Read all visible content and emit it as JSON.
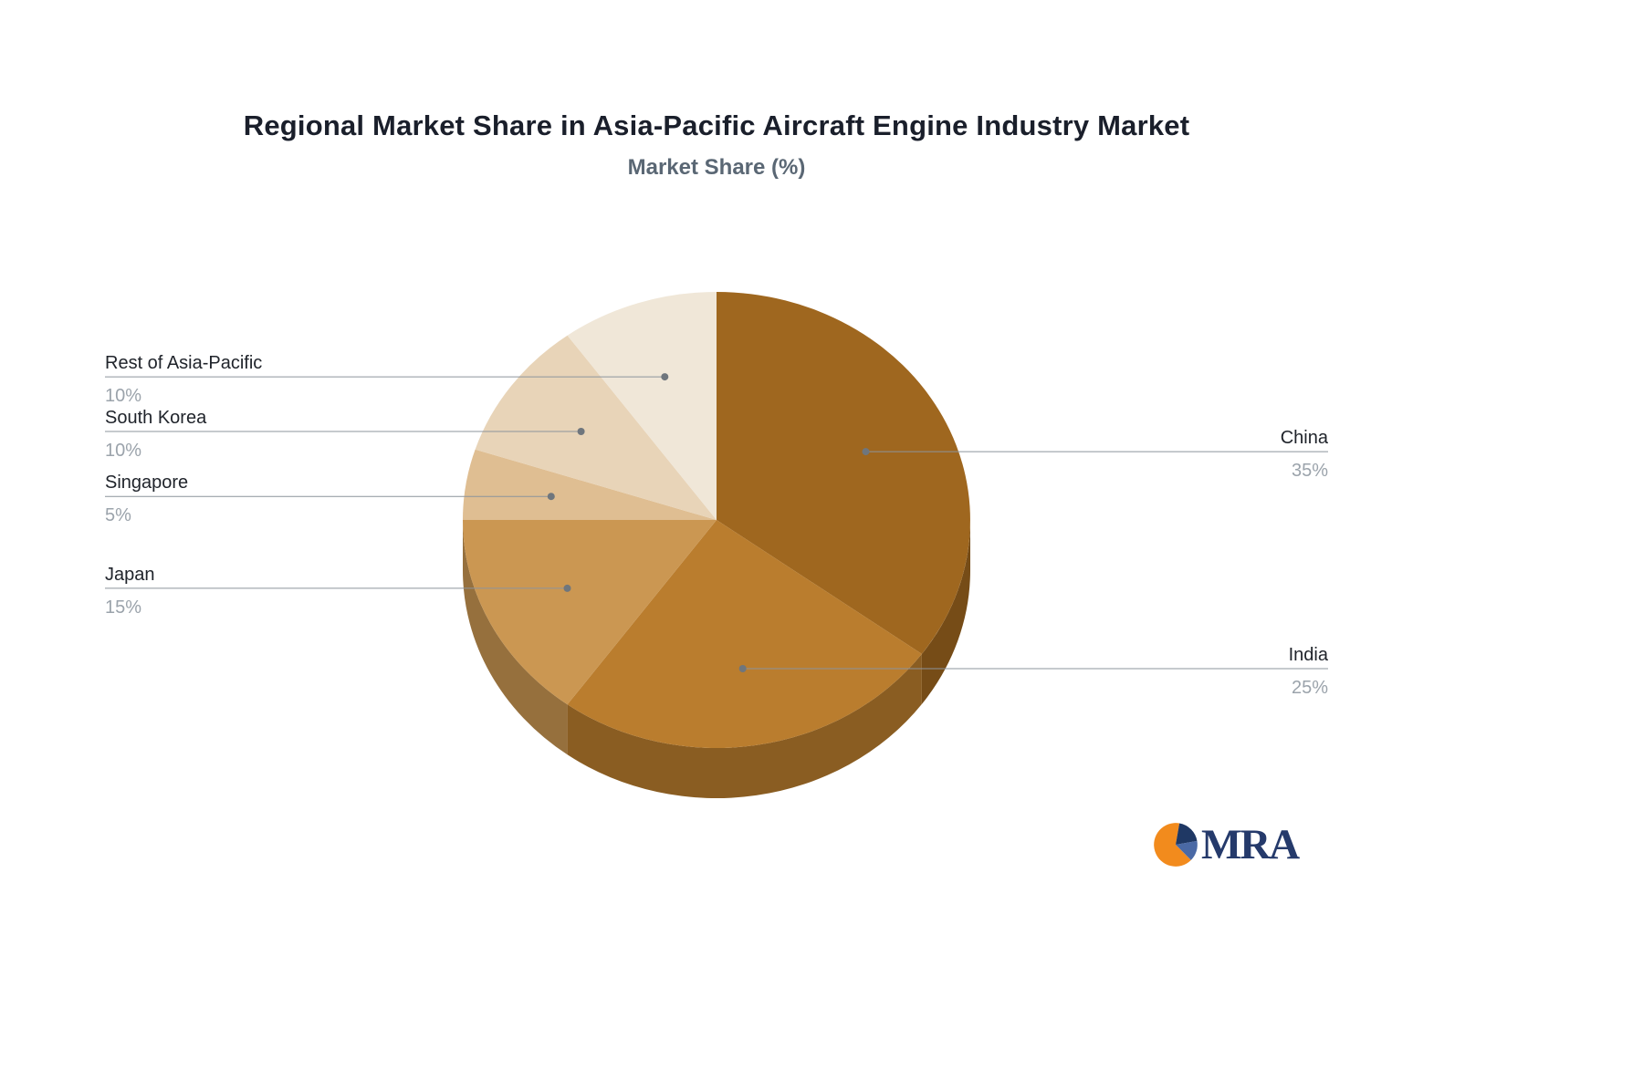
{
  "page": {
    "background": "#FFFFFF"
  },
  "chart_data": {
    "type": "pie",
    "title": "Regional Market Share in Asia-Pacific Aircraft Engine Industry Market",
    "subtitle": "Market Share (%)",
    "unit": "%",
    "labels": [
      "China",
      "India",
      "Japan",
      "Singapore",
      "South Korea",
      "Rest of Asia-Pacific"
    ],
    "values": [
      35,
      25,
      15,
      5,
      10,
      10
    ],
    "colors": [
      "#9F671F",
      "#BA7D2E",
      "#CB9752",
      "#DFBE92",
      "#E8D4B8",
      "#F0E7D8"
    ],
    "effect": "3d",
    "start_angle": "top",
    "direction": "clockwise",
    "legend": "none",
    "label_positions": {
      "China": "right",
      "India": "right",
      "Japan": "left",
      "Singapore": "left",
      "South Korea": "left",
      "Rest of Asia-Pacific": "left"
    }
  },
  "logo": {
    "text": "MRA",
    "colors": {
      "orange": "#F28B1D",
      "navy": "#1F3864",
      "blue": "#4A69A5",
      "text": "#253A6B"
    }
  },
  "styles": {
    "title_color": "#1A1F2B",
    "subtitle_color": "#5A6774",
    "label_name_color": "#20242B",
    "label_value_color": "#9BA3AB",
    "leader_line_color": "#8C949C",
    "leader_dot_color": "#6F767D",
    "side_darken_factor": 0.74
  }
}
